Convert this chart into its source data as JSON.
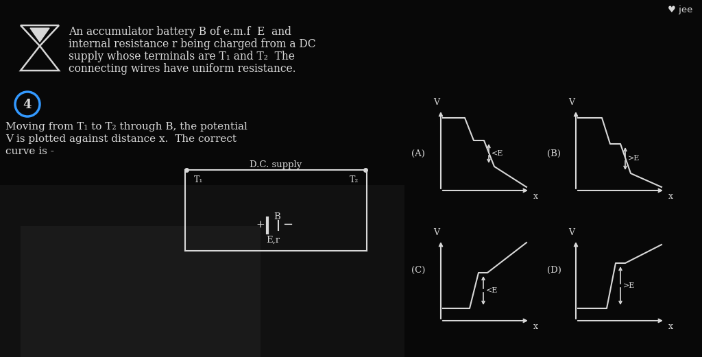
{
  "bg_color": "#080808",
  "text_color": "#e8e8e8",
  "white": "#d8d8d8",
  "title_line1": "An accumulator battery B of e.m.f  E  and",
  "title_line2": "internal resistance r being charged from a DC",
  "title_line3": "supply whose terminals are T₁ and T₂  The",
  "title_line4": "connecting wires have uniform resistance.",
  "q_line1": "Moving from T₁ to T₂ through B, the potential",
  "q_line2": "V is plotted against distance x.  The correct",
  "q_line3": "curve is -",
  "jee_text": "♥ jee",
  "dc_label": "D.C. supply",
  "T1_label": "T₁",
  "T2_label": "T₂",
  "B_label": "B",
  "Er_label": "E,r",
  "label_A": "(A)",
  "label_B": "(B)",
  "label_C": "(C)",
  "label_D": "(D)",
  "less_E": "<E",
  "more_E": ">E",
  "V_label": "V",
  "x_label": "x",
  "circle_color": "#3399ff",
  "number_label": "4"
}
